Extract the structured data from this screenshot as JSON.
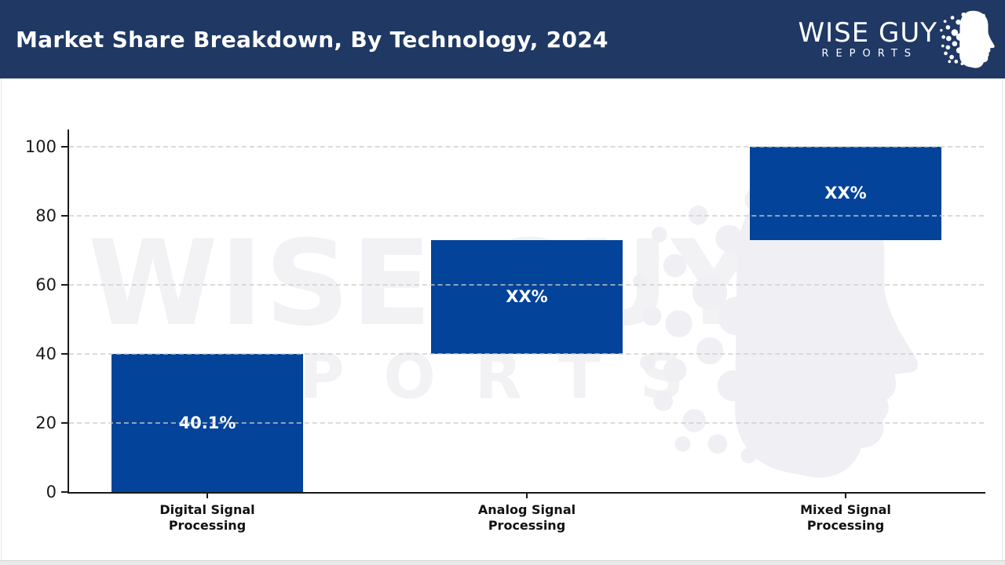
{
  "header": {
    "title": "Market Share Breakdown, By Technology, 2024",
    "logo": {
      "line1": "WISE GUY",
      "line2": "REPORTS"
    }
  },
  "watermark": {
    "line1": "WISE GUY",
    "line2": "REPORTS"
  },
  "chart_data": {
    "type": "bar",
    "subtype": "waterfall",
    "title": "Market Share Breakdown, By Technology, 2024",
    "categories": [
      {
        "name": "Digital Signal Processing",
        "line1": "Digital Signal",
        "line2": "Processing"
      },
      {
        "name": "Analog Signal Processing",
        "line1": "Analog Signal",
        "line2": "Processing"
      },
      {
        "name": "Mixed Signal Processing",
        "line1": "Mixed Signal",
        "line2": "Processing"
      }
    ],
    "segments": [
      {
        "category": "Digital Signal Processing",
        "start": 0,
        "end": 40.1,
        "label": "40.1%"
      },
      {
        "category": "Analog Signal Processing",
        "start": 40.1,
        "end": 73,
        "label": "XX%"
      },
      {
        "category": "Mixed Signal Processing",
        "start": 73,
        "end": 100,
        "label": "XX%"
      }
    ],
    "xlabel": "",
    "ylabel": "",
    "ylim": [
      0,
      100
    ],
    "yticks": [
      0,
      20,
      40,
      60,
      80,
      100
    ],
    "grid": "horizontal-dashed",
    "legend": "none",
    "bar_color": "#04439a",
    "bar_label_color": "#ffffff"
  },
  "colors": {
    "header_bg": "#1f3864",
    "bar": "#04439a",
    "axis": "#1a1a1a",
    "grid": "#d4d4d4",
    "watermark": "#f2f2f5",
    "footer_bg": "#eaeaea"
  }
}
